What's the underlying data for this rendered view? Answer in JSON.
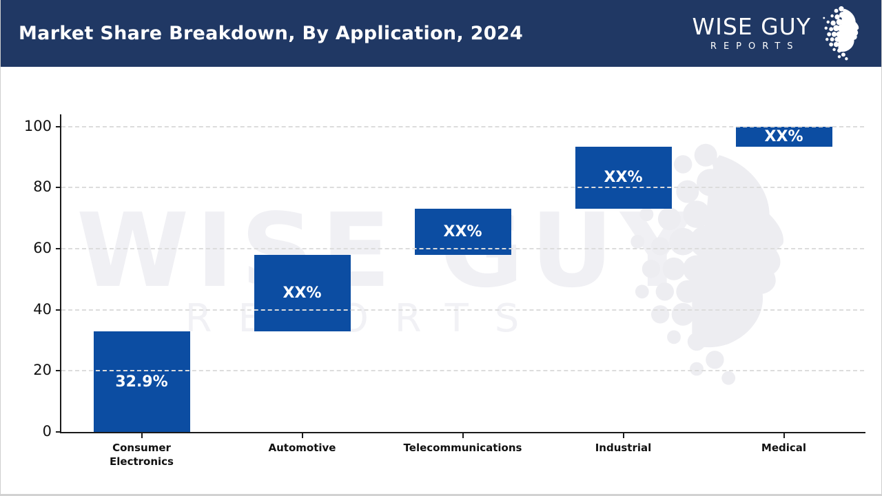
{
  "header": {
    "title": "Market Share Breakdown, By Application, 2024",
    "logo": {
      "line1": "WISE GUY",
      "line2": "REPORTS"
    }
  },
  "watermark": {
    "line1": "WISE GUY",
    "line2": "REPORTS"
  },
  "colors": {
    "header_bg": "#203864",
    "bar": "#0c4da2",
    "bar_label": "#ffffff",
    "grid": "#dcdcdc",
    "axis": "#1a1a1a"
  },
  "chart_data": {
    "type": "bar",
    "subtype": "waterfall",
    "title": "Market Share Breakdown, By Application, 2024",
    "categories": [
      "Consumer Electronics",
      "Automotive",
      "Telecommunications",
      "Industrial",
      "Medical"
    ],
    "tick_labels": [
      "Consumer\nElectronics",
      "Automotive",
      "Telecommunications",
      "Industrial",
      "Medical"
    ],
    "segments": [
      {
        "category": "Consumer Electronics",
        "start": 0,
        "end": 32.9,
        "label": "32.9%"
      },
      {
        "category": "Automotive",
        "start": 32.9,
        "end": 58.0,
        "label": "XX%"
      },
      {
        "category": "Telecommunications",
        "start": 58.0,
        "end": 73.1,
        "label": "XX%"
      },
      {
        "category": "Industrial",
        "start": 73.1,
        "end": 93.4,
        "label": "XX%"
      },
      {
        "category": "Medical",
        "start": 93.4,
        "end": 100,
        "label": "XX%"
      }
    ],
    "ylabel": "",
    "xlabel": "",
    "yticks": [
      0,
      20,
      40,
      60,
      80,
      100
    ],
    "ylim": [
      0,
      104
    ],
    "grid": "dashed-horizontal",
    "legend": "none"
  }
}
